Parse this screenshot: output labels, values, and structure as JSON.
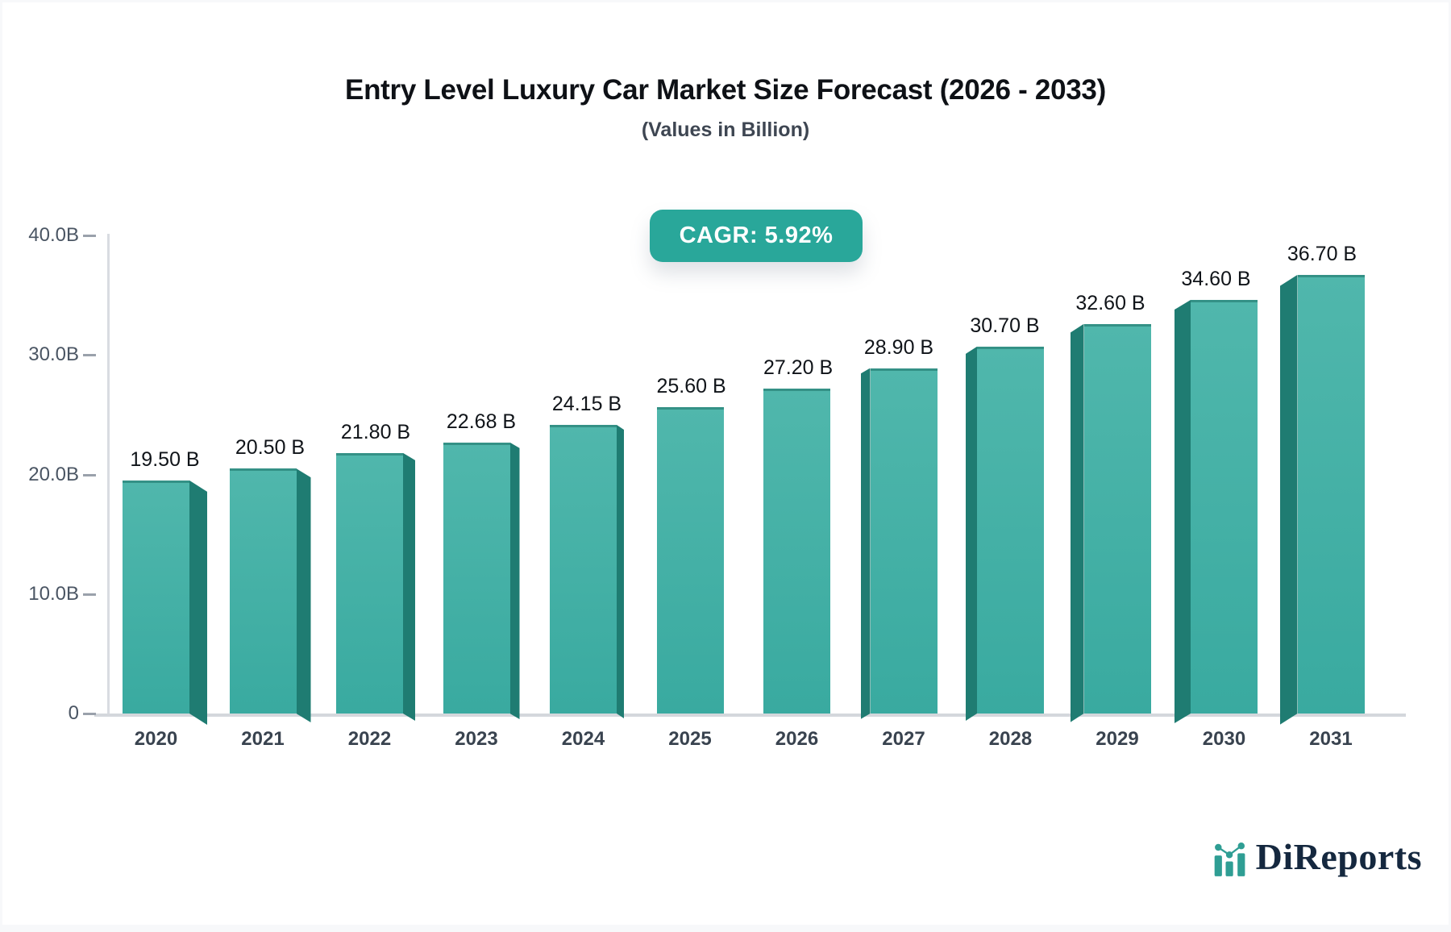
{
  "header": {
    "title": "Entry Level Luxury Car Market Size Forecast (2026 - 2033)",
    "subtitle": "(Values in Billion)"
  },
  "badge": {
    "label": "CAGR: 5.92%"
  },
  "logo": {
    "brand": "DiReports"
  },
  "icons": {
    "logo": "mini-bar-line-chart-icon"
  },
  "colors": {
    "accent_teal": "#29a79a",
    "bar_face_top": "#50b7ac",
    "bar_face_bottom": "#39aaa0",
    "bar_side": "#1f7c72",
    "axis_line": "#d9dce1",
    "logo_navy": "#15283f",
    "logo_teal": "#2f9e94"
  },
  "chart_data": {
    "type": "bar",
    "title": "Entry Level Luxury Car Market Size Forecast (2026 - 2033)",
    "subtitle": "(Values in Billion)",
    "xlabel": "",
    "ylabel": "",
    "ylim": [
      0,
      40
    ],
    "grid": false,
    "legend": "none",
    "categories": [
      "2020",
      "2021",
      "2022",
      "2023",
      "2024",
      "2025",
      "2026",
      "2027",
      "2028",
      "2029",
      "2030",
      "2031"
    ],
    "values": [
      19.5,
      20.5,
      21.8,
      22.68,
      24.15,
      25.6,
      27.2,
      28.9,
      30.7,
      32.6,
      34.6,
      36.7
    ],
    "value_labels": [
      "19.50 B",
      "20.50 B",
      "21.80 B",
      "22.68 B",
      "24.15 B",
      "25.60 B",
      "27.20 B",
      "28.90 B",
      "30.70 B",
      "32.60 B",
      "34.60 B",
      "36.70 B"
    ],
    "y_ticks": [
      "40.0B",
      "30.0B",
      "20.0B",
      "10.0B",
      "0"
    ],
    "annotation": "CAGR: 5.92%"
  }
}
